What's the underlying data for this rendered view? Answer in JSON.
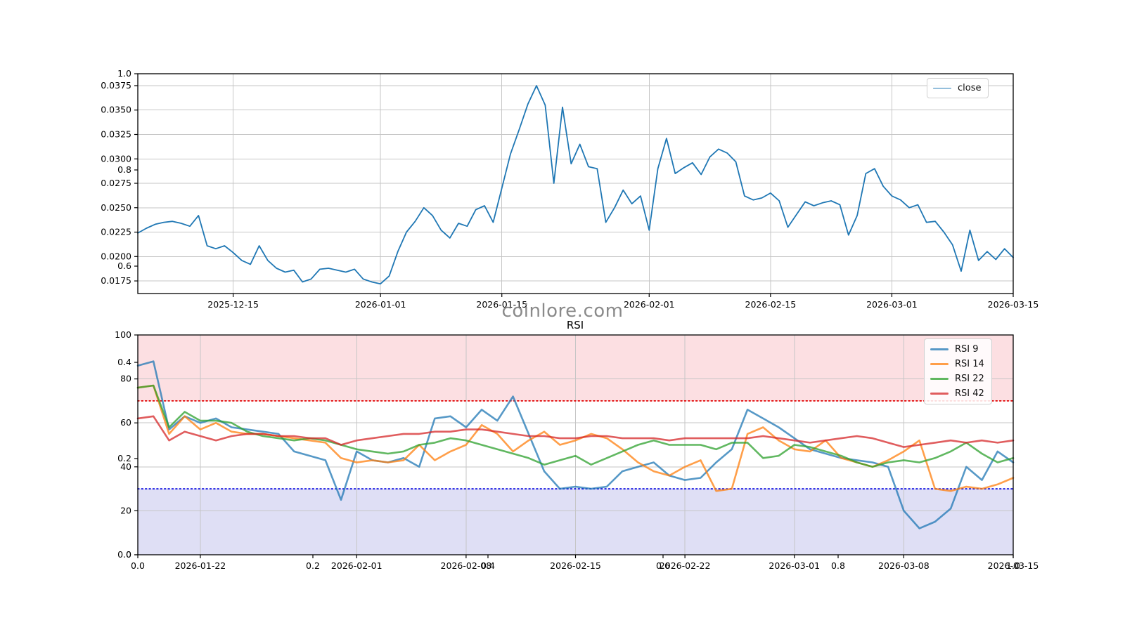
{
  "watermark": "coinlore.com",
  "figure_axis": {
    "x_tick_labels": [
      "0.0",
      "0.2",
      "0.4",
      "0.6",
      "0.8",
      "1.0"
    ],
    "y_tick_labels": [
      "1.0",
      "0.8",
      "0.6",
      "0.4",
      "0.2",
      "0.0"
    ]
  },
  "chart_data": [
    {
      "type": "line",
      "title": "",
      "panel": "price",
      "grid": true,
      "legend_position": "upper right",
      "x_start_date": "2025-12-04",
      "x_tick_labels": [
        "2025-12-15",
        "2026-01-01",
        "2026-01-15",
        "2026-02-01",
        "2026-02-15",
        "2026-03-01",
        "2026-03-15"
      ],
      "x_tick_day_index": [
        11,
        28,
        42,
        59,
        73,
        87,
        101
      ],
      "y_tick_labels": [
        "0.0375",
        "0.0350",
        "0.0325",
        "0.0300",
        "0.0275",
        "0.0250",
        "0.0225",
        "0.0200",
        "0.0175"
      ],
      "y_tick_values": [
        0.0375,
        0.035,
        0.0325,
        0.03,
        0.0275,
        0.025,
        0.0225,
        0.02,
        0.0175
      ],
      "ylim": [
        0.01621,
        0.03872
      ],
      "series": [
        {
          "name": "close",
          "color": "#1f77b4",
          "values": [
            0.0224,
            0.0229,
            0.0233,
            0.0235,
            0.0236,
            0.0234,
            0.0231,
            0.0242,
            0.0211,
            0.0208,
            0.0211,
            0.0204,
            0.0196,
            0.0192,
            0.0211,
            0.0196,
            0.0188,
            0.0184,
            0.0186,
            0.0174,
            0.0177,
            0.0187,
            0.0188,
            0.0186,
            0.0184,
            0.0187,
            0.0177,
            0.0174,
            0.0172,
            0.018,
            0.0205,
            0.0225,
            0.0236,
            0.025,
            0.0242,
            0.0227,
            0.0219,
            0.0234,
            0.0231,
            0.0248,
            0.0252,
            0.0235,
            0.027,
            0.0305,
            0.033,
            0.0356,
            0.0375,
            0.0355,
            0.0275,
            0.0353,
            0.0295,
            0.0315,
            0.0292,
            0.029,
            0.0235,
            0.025,
            0.0268,
            0.0254,
            0.0262,
            0.0227,
            0.029,
            0.0321,
            0.0285,
            0.0291,
            0.0296,
            0.0284,
            0.0302,
            0.031,
            0.0306,
            0.0297,
            0.0262,
            0.0258,
            0.026,
            0.0265,
            0.0257,
            0.023,
            0.0243,
            0.0256,
            0.0252,
            0.0255,
            0.0257,
            0.0253,
            0.0222,
            0.0242,
            0.0285,
            0.029,
            0.0272,
            0.0262,
            0.0258,
            0.025,
            0.0253,
            0.0235,
            0.0236,
            0.0225,
            0.0212,
            0.0185,
            0.0227,
            0.0196,
            0.0205,
            0.0197,
            0.0208,
            0.0199
          ]
        }
      ]
    },
    {
      "type": "line",
      "title": "RSI",
      "panel": "rsi",
      "grid": true,
      "legend_position": "upper right",
      "x_start_date": "2026-01-18",
      "x_tick_labels": [
        "2026-01-22",
        "2026-02-01",
        "2026-02-08",
        "2026-02-15",
        "2026-02-22",
        "2026-03-01",
        "2026-03-08",
        "2026-03-15"
      ],
      "x_tick_day_index": [
        4,
        14,
        21,
        28,
        35,
        42,
        49,
        56
      ],
      "y_tick_labels": [
        "100",
        "80",
        "60",
        "40",
        "20",
        "0"
      ],
      "y_tick_values": [
        100,
        80,
        60,
        40,
        20,
        0
      ],
      "ylim": [
        0,
        100
      ],
      "overbought_level": 70,
      "oversold_level": 30,
      "bands": [
        {
          "from": 70,
          "to": 100,
          "color": "#fcdfe2",
          "meaning": "overbought"
        },
        {
          "from": 0,
          "to": 30,
          "color": "#dfdff5",
          "meaning": "oversold"
        }
      ],
      "hlines": [
        {
          "value": 70,
          "color": "#e00000",
          "style": "dotted"
        },
        {
          "value": 30,
          "color": "#0000dd",
          "style": "dotted"
        }
      ],
      "series": [
        {
          "name": "RSI 9",
          "color": "#1f77b4",
          "values": [
            86,
            88,
            57,
            63,
            60,
            62,
            58,
            57,
            56,
            55,
            47,
            45,
            43,
            25,
            47,
            43,
            42,
            44,
            40,
            62,
            63,
            58,
            66,
            61,
            72,
            55,
            38,
            30,
            31,
            30,
            31,
            38,
            40,
            42,
            36,
            34,
            35,
            42,
            48,
            66,
            62,
            58,
            53,
            48,
            46,
            44,
            43,
            42,
            40,
            20,
            12,
            15,
            21,
            40,
            34,
            47,
            42
          ]
        },
        {
          "name": "RSI 14",
          "color": "#ff7f0e",
          "values": [
            76,
            77,
            55,
            63,
            57,
            60,
            56,
            55,
            55,
            54,
            53,
            52,
            51,
            44,
            42,
            43,
            42,
            43,
            50,
            43,
            47,
            50,
            59,
            55,
            47,
            52,
            56,
            50,
            52,
            55,
            53,
            48,
            42,
            38,
            36,
            40,
            43,
            29,
            30,
            55,
            58,
            52,
            48,
            47,
            52,
            44,
            42,
            40,
            43,
            47,
            52,
            30,
            29,
            31,
            30,
            32,
            35
          ]
        },
        {
          "name": "RSI 22",
          "color": "#2ca02c",
          "values": [
            76,
            77,
            58,
            65,
            61,
            61,
            60,
            56,
            54,
            53,
            52,
            53,
            52,
            50,
            48,
            47,
            46,
            47,
            50,
            51,
            53,
            52,
            50,
            48,
            46,
            44,
            41,
            43,
            45,
            41,
            44,
            47,
            50,
            52,
            50,
            50,
            50,
            48,
            51,
            51,
            44,
            45,
            50,
            49,
            47,
            45,
            42,
            40,
            42,
            43,
            42,
            44,
            47,
            51,
            46,
            42,
            44
          ]
        },
        {
          "name": "RSI 42",
          "color": "#d62728",
          "values": [
            62,
            63,
            52,
            56,
            54,
            52,
            54,
            55,
            55,
            54,
            54,
            53,
            53,
            50,
            52,
            53,
            54,
            55,
            55,
            56,
            56,
            57,
            57,
            56,
            55,
            54,
            54,
            53,
            53,
            54,
            54,
            53,
            53,
            53,
            52,
            53,
            53,
            53,
            53,
            53,
            54,
            53,
            52,
            51,
            52,
            53,
            54,
            53,
            51,
            49,
            50,
            51,
            52,
            51,
            52,
            51,
            52
          ]
        }
      ]
    }
  ]
}
